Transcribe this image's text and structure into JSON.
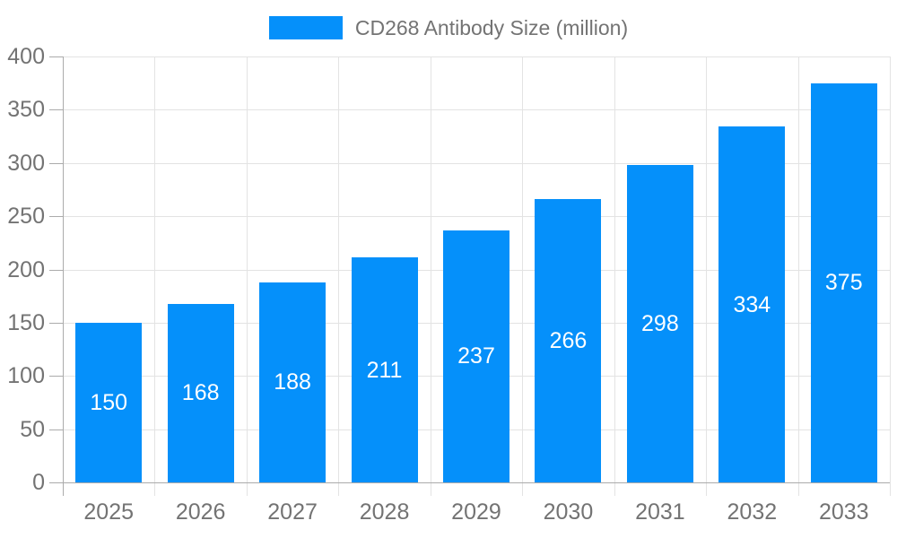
{
  "chart": {
    "legend": {
      "label": "CD268 Antibody Size (million)"
    }
  },
  "colors": {
    "bar": "#0590FA",
    "label_text": "#737373",
    "grid": "#e3e3e3",
    "axis": "#ababab",
    "value_text": "#ffffff",
    "background": "#ffffff"
  },
  "chart_data": {
    "type": "bar",
    "title": "CD268 Antibody Size (million)",
    "series_name": "CD268 Antibody Size (million)",
    "categories": [
      "2025",
      "2026",
      "2027",
      "2028",
      "2029",
      "2030",
      "2031",
      "2032",
      "2033"
    ],
    "values": [
      150,
      168,
      188,
      211,
      237,
      266,
      298,
      334,
      375
    ],
    "xlabel": "",
    "ylabel": "",
    "ylim": [
      0,
      400
    ],
    "yticks": [
      0,
      50,
      100,
      150,
      200,
      250,
      300,
      350,
      400
    ],
    "ytick_step": 50,
    "grid": true,
    "legend_position": "top-center",
    "value_labels_position": "inside-center"
  }
}
